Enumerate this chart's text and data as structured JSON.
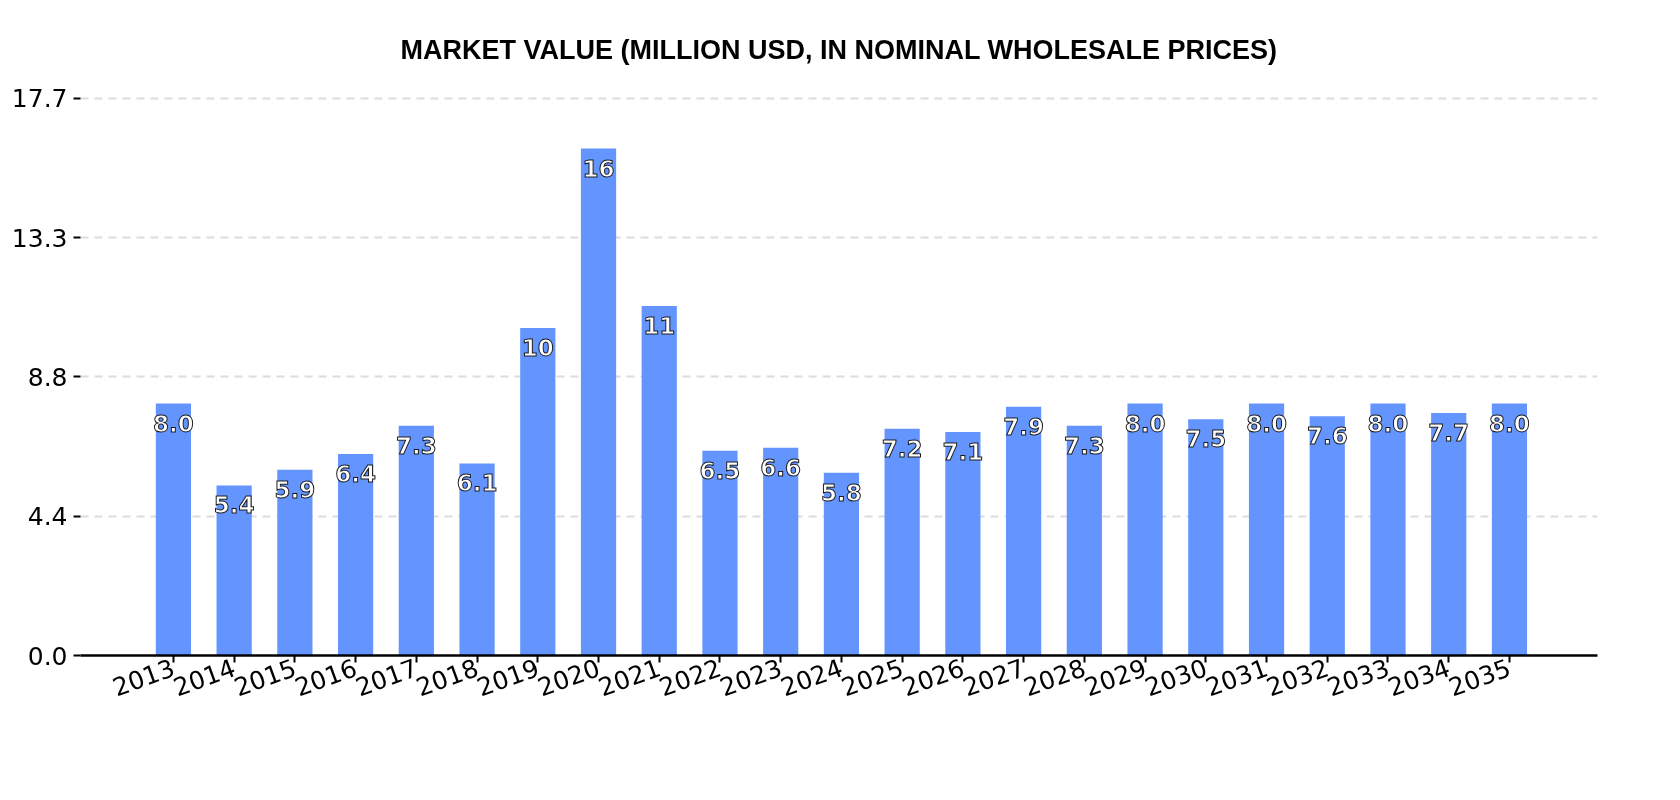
{
  "chart_data": {
    "type": "bar",
    "title": "MARKET VALUE (MILLION USD, IN NOMINAL WHOLESALE PRICES)",
    "categories": [
      "2013",
      "2014",
      "2015",
      "2016",
      "2017",
      "2018",
      "2019",
      "2020",
      "2021",
      "2022",
      "2023",
      "2024",
      "2025",
      "2026",
      "2027",
      "2028",
      "2029",
      "2030",
      "2031",
      "2032",
      "2033",
      "2034",
      "2035"
    ],
    "values": [
      8.0,
      5.4,
      5.9,
      6.4,
      7.3,
      6.1,
      10.4,
      16.1,
      11.1,
      6.5,
      6.6,
      5.8,
      7.2,
      7.1,
      7.9,
      7.3,
      8.0,
      7.5,
      8.0,
      7.6,
      8.0,
      7.7,
      8.0
    ],
    "value_labels": [
      "8.0",
      "5.4",
      "5.9",
      "6.4",
      "7.3",
      "6.1",
      "10",
      "16",
      "11",
      "6.5",
      "6.6",
      "5.8",
      "7.2",
      "7.1",
      "7.9",
      "7.3",
      "8.0",
      "7.5",
      "8.0",
      "7.6",
      "8.0",
      "7.7",
      "8.0"
    ],
    "color": "#6495ff",
    "ylim": [
      0,
      17.7
    ],
    "yticks": [
      {
        "value": 0,
        "label": "0.0"
      },
      {
        "value": 4.425,
        "label": "4.4"
      },
      {
        "value": 8.85,
        "label": "8.8"
      },
      {
        "value": 13.275,
        "label": "13.3"
      },
      17.7
    ],
    "grid": "y"
  }
}
